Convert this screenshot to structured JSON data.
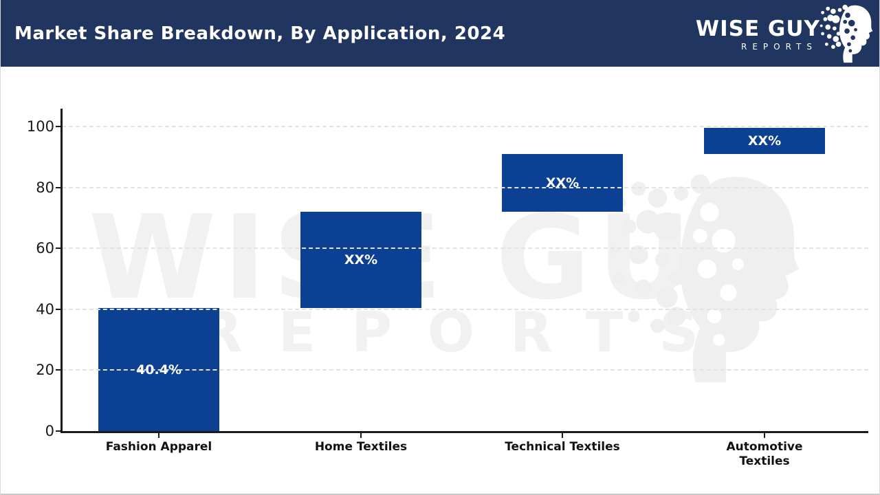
{
  "header": {
    "title": "Market Share Breakdown, By Application, 2024",
    "logo": {
      "brand_line1": "WISE GUY",
      "brand_line2": "REPORTS"
    }
  },
  "watermark": {
    "line1": "WISE GUY",
    "line2": "REPORTS"
  },
  "colors": {
    "header_bg": "#203660",
    "bar": "#0b4092",
    "bar_label": "#ffffff",
    "gridline": "#e2e2e2",
    "axis": "#1a1a1a",
    "watermark": "#f1f1f1"
  },
  "chart_data": {
    "type": "bar",
    "subtype": "waterfall",
    "title": "Market Share Breakdown, By Application, 2024",
    "categories": [
      "Fashion Apparel",
      "Home Textiles",
      "Technical Textiles",
      "Automotive Textiles"
    ],
    "tick_lines": [
      [
        "Fashion Apparel"
      ],
      [
        "Home Textiles"
      ],
      [
        "Technical Textiles"
      ],
      [
        "Automotive",
        "Textiles"
      ]
    ],
    "segments": [
      {
        "category": "Fashion Apparel",
        "start": 0,
        "end": 40.4,
        "label": "40.4%"
      },
      {
        "category": "Home Textiles",
        "start": 40.4,
        "end": 72,
        "label": "XX%"
      },
      {
        "category": "Technical Textiles",
        "start": 72,
        "end": 91,
        "label": "XX%"
      },
      {
        "category": "Automotive Textiles",
        "start": 91,
        "end": 99.5,
        "label": "XX%"
      }
    ],
    "y_ticks": [
      0,
      20,
      40,
      60,
      80,
      100
    ],
    "ylim": [
      0,
      105
    ],
    "xlabel": "",
    "ylabel": "",
    "grid": "horizontal-dashed",
    "legend": "none",
    "bar_color": "#0b4092",
    "value_labels": [
      "40.4%",
      "XX%",
      "XX%",
      "XX%"
    ]
  }
}
